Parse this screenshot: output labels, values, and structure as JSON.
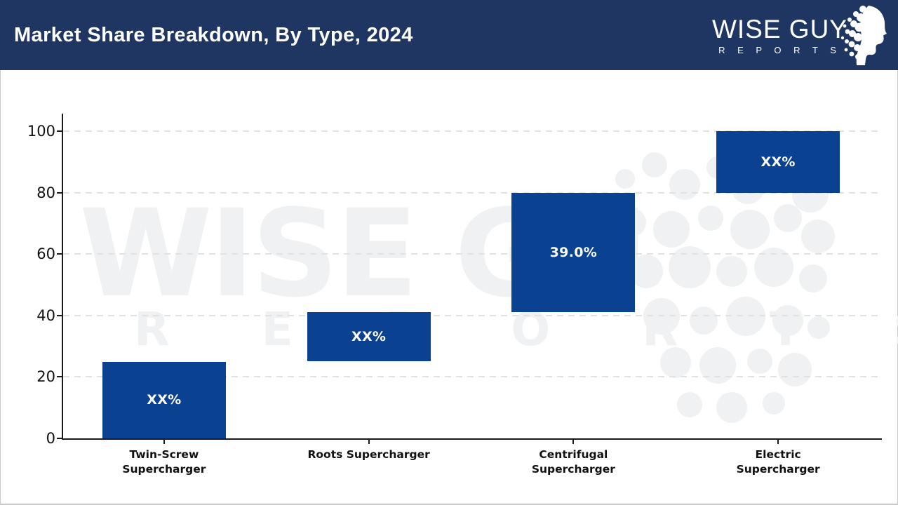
{
  "header": {
    "title": "Market Share Breakdown, By Type, 2024",
    "logo": {
      "name": "WISE GUY",
      "sub": "R E P O R T S"
    }
  },
  "watermark": {
    "line1": "WISE GU",
    "line2": "R E P O R T S"
  },
  "colors": {
    "header_bg": "#203662",
    "bar": "#0a4191",
    "bar_label": "#ffffff",
    "grid": "#e2e2e2",
    "axis": "#1a1a1a",
    "watermark": "#f0f1f3"
  },
  "chart_data": {
    "type": "bar",
    "subtype": "waterfall-floating-bars",
    "title": "Market Share Breakdown, By Type, 2024",
    "categories": [
      "Twin-Screw\nSupercharger",
      "Roots Supercharger",
      "Centrifugal\nSupercharger",
      "Electric\nSupercharger"
    ],
    "segments": [
      {
        "category": "Twin-Screw Supercharger",
        "start": 0,
        "end": 25,
        "value": 25,
        "label": "XX%"
      },
      {
        "category": "Roots Supercharger",
        "start": 25,
        "end": 41,
        "value": 16,
        "label": "XX%"
      },
      {
        "category": "Centrifugal Supercharger",
        "start": 41,
        "end": 80,
        "value": 39,
        "label": "39.0%"
      },
      {
        "category": "Electric Supercharger",
        "start": 80,
        "end": 100,
        "value": 20,
        "label": "XX%"
      }
    ],
    "yticks": [
      0,
      20,
      40,
      60,
      80,
      100
    ],
    "ytick_labels": [
      "0",
      "20",
      "40",
      "60",
      "80",
      "100"
    ],
    "ylim": [
      0,
      105.7
    ],
    "xlabel": "",
    "ylabel": "",
    "grid": "horizontal-dashed",
    "legend": "none",
    "bar_color": "#0a4191",
    "bar_label_color": "#ffffff"
  }
}
